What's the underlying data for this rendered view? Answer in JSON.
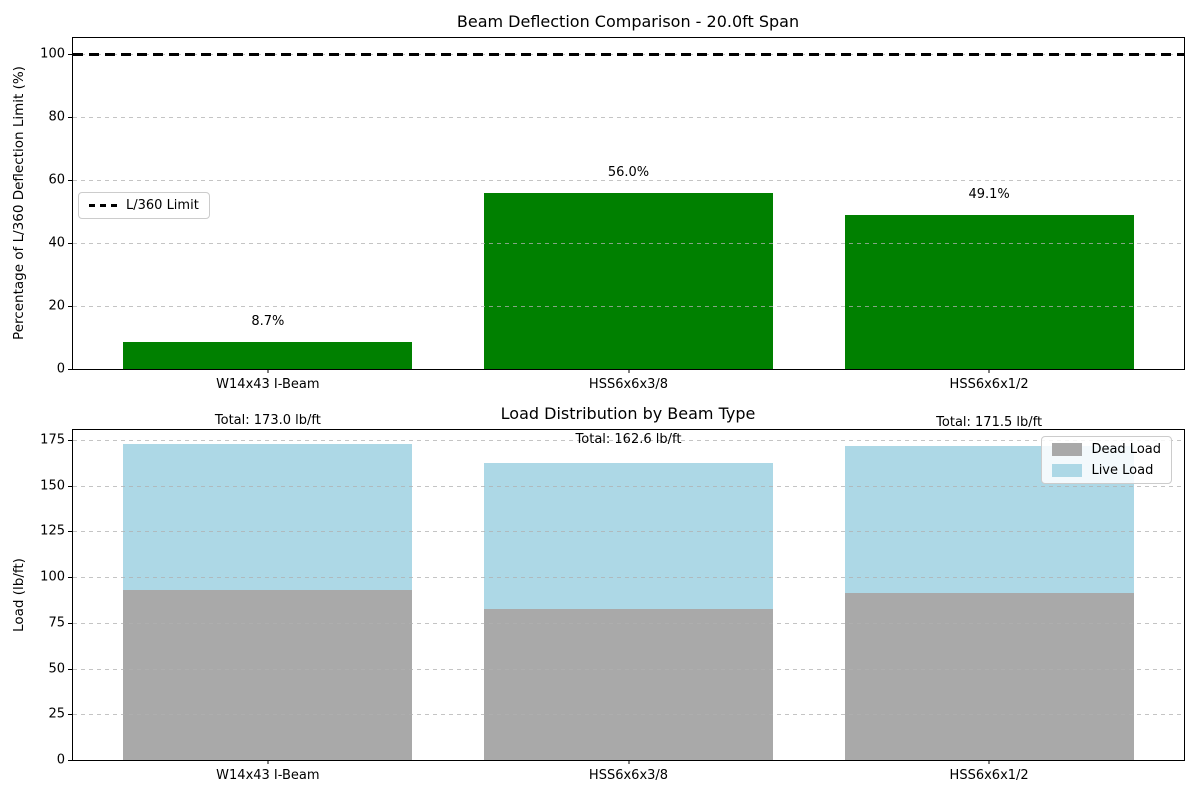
{
  "figure": {
    "background": "#ffffff",
    "grid_color": "#b0b0b0",
    "spine_color": "#000000"
  },
  "chart_data": [
    {
      "type": "bar",
      "title": "Beam Deflection Comparison - 20.0ft Span",
      "ylabel": "Percentage of L/360 Deflection Limit (%)",
      "xlabel": "",
      "categories": [
        "W14x43 I-Beam",
        "HSS6x6x3/8",
        "HSS6x6x1/2"
      ],
      "values": [
        8.7,
        56.0,
        49.1
      ],
      "bar_labels": [
        "8.7%",
        "56.0%",
        "49.1%"
      ],
      "bar_color": "#008000",
      "ylim": [
        0,
        105.2
      ],
      "yticks": [
        0,
        20,
        40,
        60,
        80,
        100
      ],
      "grid": {
        "axis": "y",
        "style": "dashed",
        "on": true
      },
      "reference_line": {
        "value": 100,
        "style": "dashed",
        "color": "#000000",
        "label": "L/360 Limit"
      },
      "legend": {
        "position": "center-left",
        "items": [
          {
            "label": "L/360 Limit",
            "swatch": "dashed-line",
            "color": "#000000"
          }
        ]
      }
    },
    {
      "type": "stacked-bar",
      "title": "Load Distribution by Beam Type",
      "ylabel": "Load (lb/ft)",
      "xlabel": "",
      "categories": [
        "W14x43 I-Beam",
        "HSS6x6x3/8",
        "HSS6x6x1/2"
      ],
      "series": [
        {
          "name": "Dead Load",
          "color": "#a9a9a9",
          "values": [
            93.0,
            82.6,
            91.5
          ]
        },
        {
          "name": "Live Load",
          "color": "#add8e6",
          "values": [
            80.0,
            80.0,
            80.0
          ]
        }
      ],
      "totals": [
        173.0,
        162.6,
        171.5
      ],
      "total_labels": [
        "Total: 173.0 lb/ft",
        "Total: 162.6 lb/ft",
        "Total: 171.5 lb/ft"
      ],
      "ylim": [
        0,
        180.5
      ],
      "yticks": [
        0,
        25,
        50,
        75,
        100,
        125,
        150,
        175
      ],
      "grid": {
        "axis": "y",
        "style": "dashed",
        "on": true
      },
      "legend": {
        "position": "top-right",
        "items": [
          {
            "label": "Dead Load",
            "swatch": "patch",
            "color": "#a9a9a9"
          },
          {
            "label": "Live Load",
            "swatch": "patch",
            "color": "#add8e6"
          }
        ]
      }
    }
  ]
}
